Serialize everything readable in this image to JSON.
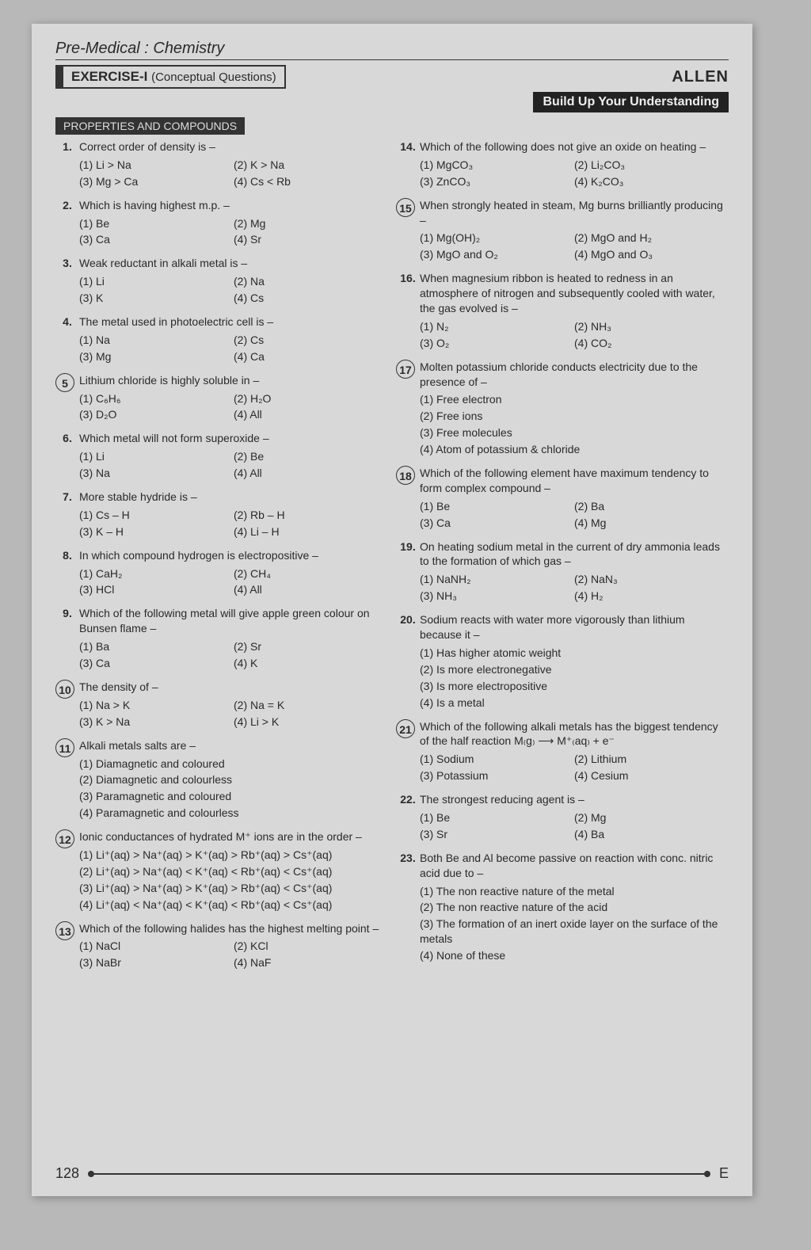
{
  "header": "Pre-Medical : Chemistry",
  "brand": "ALLEN",
  "exercise": {
    "code": "EXERCISE-I",
    "sub": "(Conceptual Questions)"
  },
  "build": "Build Up Your Understanding",
  "section": "PROPERTIES AND COMPOUNDS",
  "pageNum": "128",
  "pageLetter": "E",
  "left": [
    {
      "n": "1.",
      "stem": "Correct order of density is –",
      "opts": [
        "(1) Li > Na",
        "(2) K > Na",
        "(3) Mg > Ca",
        "(4) Cs < Rb"
      ]
    },
    {
      "n": "2.",
      "stem": "Which is having highest m.p. –",
      "opts": [
        "(1) Be",
        "(2) Mg",
        "(3) Ca",
        "(4) Sr"
      ]
    },
    {
      "n": "3.",
      "stem": "Weak reductant in alkali metal is –",
      "opts": [
        "(1) Li",
        "(2) Na",
        "(3) K",
        "(4) Cs"
      ]
    },
    {
      "n": "4.",
      "stem": "The metal used in photoelectric cell is –",
      "opts": [
        "(1) Na",
        "(2) Cs",
        "(3) Mg",
        "(4) Ca"
      ]
    },
    {
      "n": "5.",
      "circled": true,
      "stem": "Lithium chloride is highly soluble in –",
      "opts": [
        "(1) C₆H₆",
        "(2) H₂O",
        "(3) D₂O",
        "(4) All"
      ]
    },
    {
      "n": "6.",
      "stem": "Which metal will not form superoxide –",
      "opts": [
        "(1) Li",
        "(2) Be",
        "(3) Na",
        "(4) All"
      ]
    },
    {
      "n": "7.",
      "stem": "More stable hydride is –",
      "opts": [
        "(1) Cs – H",
        "(2) Rb – H",
        "(3) K – H",
        "(4) Li – H"
      ]
    },
    {
      "n": "8.",
      "stem": "In which compound hydrogen is electropositive –",
      "opts": [
        "(1) CaH₂",
        "(2) CH₄",
        "(3) HCl",
        "(4) All"
      ]
    },
    {
      "n": "9.",
      "stem": "Which of the following metal will give apple green colour on Bunsen flame –",
      "opts": [
        "(1) Ba",
        "(2) Sr",
        "(3) Ca",
        "(4) K"
      ]
    },
    {
      "n": "10.",
      "circled": true,
      "stem": "The density of –",
      "opts": [
        "(1) Na > K",
        "(2) Na = K",
        "(3) K > Na",
        "(4) Li > K"
      ]
    },
    {
      "n": "11.",
      "circled": true,
      "stem": "Alkali metals salts are –",
      "optsFull": [
        "(1) Diamagnetic and coloured",
        "(2) Diamagnetic and colourless",
        "(3) Paramagnetic and coloured",
        "(4) Paramagnetic and colourless"
      ]
    },
    {
      "n": "12.",
      "circled": true,
      "stem": "Ionic conductances of hydrated M⁺ ions are in the order –",
      "optsFull": [
        "(1) Li⁺(aq) > Na⁺(aq) > K⁺(aq) > Rb⁺(aq) > Cs⁺(aq)",
        "(2) Li⁺(aq) > Na⁺(aq) < K⁺(aq) < Rb⁺(aq) < Cs⁺(aq)",
        "(3) Li⁺(aq) > Na⁺(aq) > K⁺(aq) > Rb⁺(aq) < Cs⁺(aq)",
        "(4) Li⁺(aq) < Na⁺(aq) < K⁺(aq) < Rb⁺(aq) < Cs⁺(aq)"
      ]
    },
    {
      "n": "13.",
      "circled": true,
      "stem": "Which of the following halides has the highest melting point –",
      "opts": [
        "(1) NaCl",
        "(2) KCl",
        "(3) NaBr",
        "(4) NaF"
      ]
    }
  ],
  "right": [
    {
      "n": "14.",
      "stem": "Which of the following does not give an oxide on heating –",
      "opts": [
        "(1) MgCO₃",
        "(2) Li₂CO₃",
        "(3) ZnCO₃",
        "(4) K₂CO₃"
      ]
    },
    {
      "n": "15.",
      "circled": true,
      "stem": "When strongly heated in steam, Mg burns brilliantly producing –",
      "opts": [
        "(1) Mg(OH)₂",
        "(2) MgO and H₂",
        "(3) MgO and O₂",
        "(4) MgO and O₃"
      ]
    },
    {
      "n": "16.",
      "stem": "When magnesium ribbon is heated to redness in an atmosphere of nitrogen and subsequently cooled with water, the gas evolved is –",
      "opts": [
        "(1) N₂",
        "(2) NH₃",
        "(3) O₂",
        "(4) CO₂"
      ]
    },
    {
      "n": "17.",
      "circled": true,
      "stem": "Molten potassium chloride conducts electricity due to the presence of –",
      "optsFull": [
        "(1) Free electron",
        "(2) Free ions",
        "(3) Free molecules",
        "(4) Atom of potassium & chloride"
      ]
    },
    {
      "n": "18.",
      "circled": true,
      "stem": "Which of the following element have maximum tendency to form complex compound –",
      "opts": [
        "(1) Be",
        "(2) Ba",
        "(3) Ca",
        "(4) Mg"
      ]
    },
    {
      "n": "19.",
      "stem": "On heating sodium metal in the current of dry ammonia leads to the formation of which gas –",
      "opts": [
        "(1) NaNH₂",
        "(2) NaN₃",
        "(3) NH₃",
        "(4) H₂"
      ]
    },
    {
      "n": "20.",
      "stem": "Sodium reacts with water more vigorously than lithium because it –",
      "optsFull": [
        "(1) Has higher atomic weight",
        "(2) Is more electronegative",
        "(3) Is more electropositive",
        "(4) Is a metal"
      ]
    },
    {
      "n": "21.",
      "circled": true,
      "stem": "Which of the following alkali metals has the biggest tendency of the half reaction M₍g₎ ⟶ M⁺₍aq₎ + e⁻",
      "opts": [
        "(1) Sodium",
        "(2) Lithium",
        "(3) Potassium",
        "(4) Cesium"
      ]
    },
    {
      "n": "22.",
      "stem": "The strongest reducing agent is –",
      "opts": [
        "(1) Be",
        "(2) Mg",
        "(3) Sr",
        "(4) Ba"
      ]
    },
    {
      "n": "23.",
      "stem": "Both Be and Al become passive on reaction with conc. nitric acid due to –",
      "optsFull": [
        "(1) The non reactive nature of the metal",
        "(2) The non reactive nature of the acid",
        "(3) The formation of an inert oxide layer on the surface of the metals",
        "(4) None of these"
      ]
    }
  ]
}
